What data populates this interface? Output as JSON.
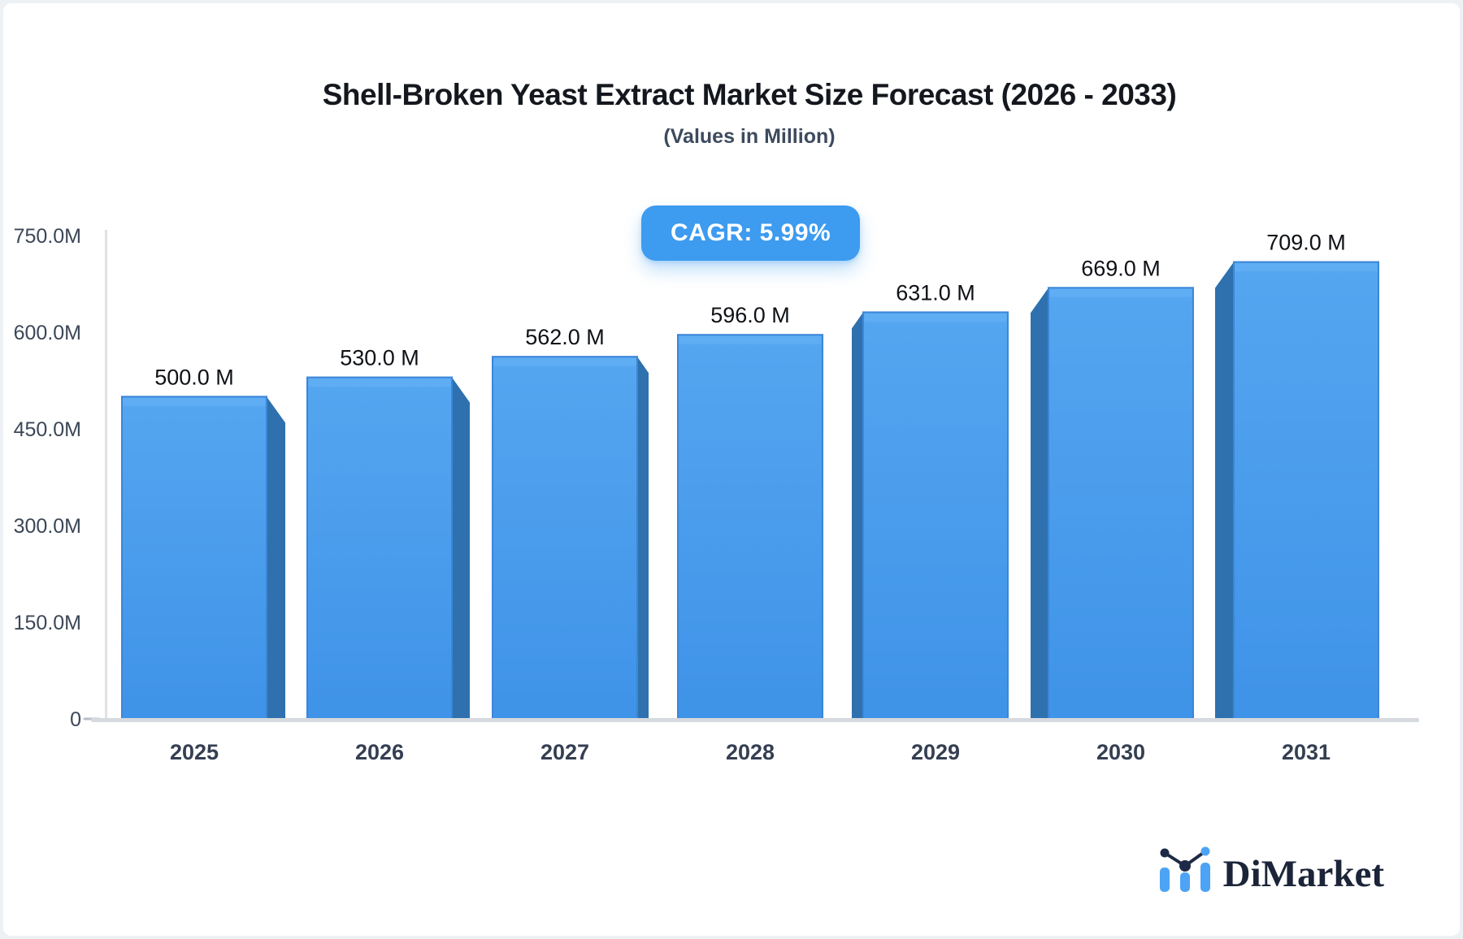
{
  "header": {
    "title": "Shell-Broken Yeast Extract Market Size Forecast (2026 - 2033)",
    "subtitle": "(Values in Million)"
  },
  "cagr_badge": {
    "label": "CAGR: 5.99%",
    "background": "#3d9bf0",
    "text_color": "#ffffff"
  },
  "chart_data": {
    "type": "bar",
    "title": "Shell-Broken Yeast Extract Market Size Forecast (2026 - 2033)",
    "subtitle": "(Values in Million)",
    "unit": "Million",
    "categories": [
      "2025",
      "2026",
      "2027",
      "2028",
      "2029",
      "2030",
      "2031"
    ],
    "values": [
      500,
      530,
      562,
      596,
      631,
      669,
      709
    ],
    "value_labels": [
      "500.0 M",
      "530.0 M",
      "562.0 M",
      "596.0 M",
      "631.0 M",
      "669.0 M",
      "709.0 M"
    ],
    "ylim": [
      0,
      750
    ],
    "yticks": [
      {
        "value": 750,
        "label": "750.0M"
      },
      {
        "value": 600,
        "label": "600.0M"
      },
      {
        "value": 450,
        "label": "450.0M"
      },
      {
        "value": 300,
        "label": "300.0M"
      },
      {
        "value": 150,
        "label": "150.0M"
      },
      {
        "value": 0,
        "label": "0"
      }
    ],
    "grid": false,
    "legend": false,
    "colors": {
      "face_top": "#55a6f0",
      "face_bottom": "#3f93e8",
      "face_border": "#3c86d8",
      "cap": "#5fadf3",
      "side": "#2e71ae",
      "value_text": "#0e1116",
      "axis_text": "#3c4757",
      "category_text": "#353f52",
      "axis_line": "#dfe2e6",
      "baseline": "#d6dade",
      "zero_dash": "#b8bec7"
    }
  },
  "logo": {
    "text": "DiMarket",
    "icon": "bar-chart-trend-icon",
    "bar_color": "#4da3f5",
    "dot_color": "#1d2a47",
    "accent_dot_color": "#4da3f5",
    "text_color": "#1b2438"
  }
}
